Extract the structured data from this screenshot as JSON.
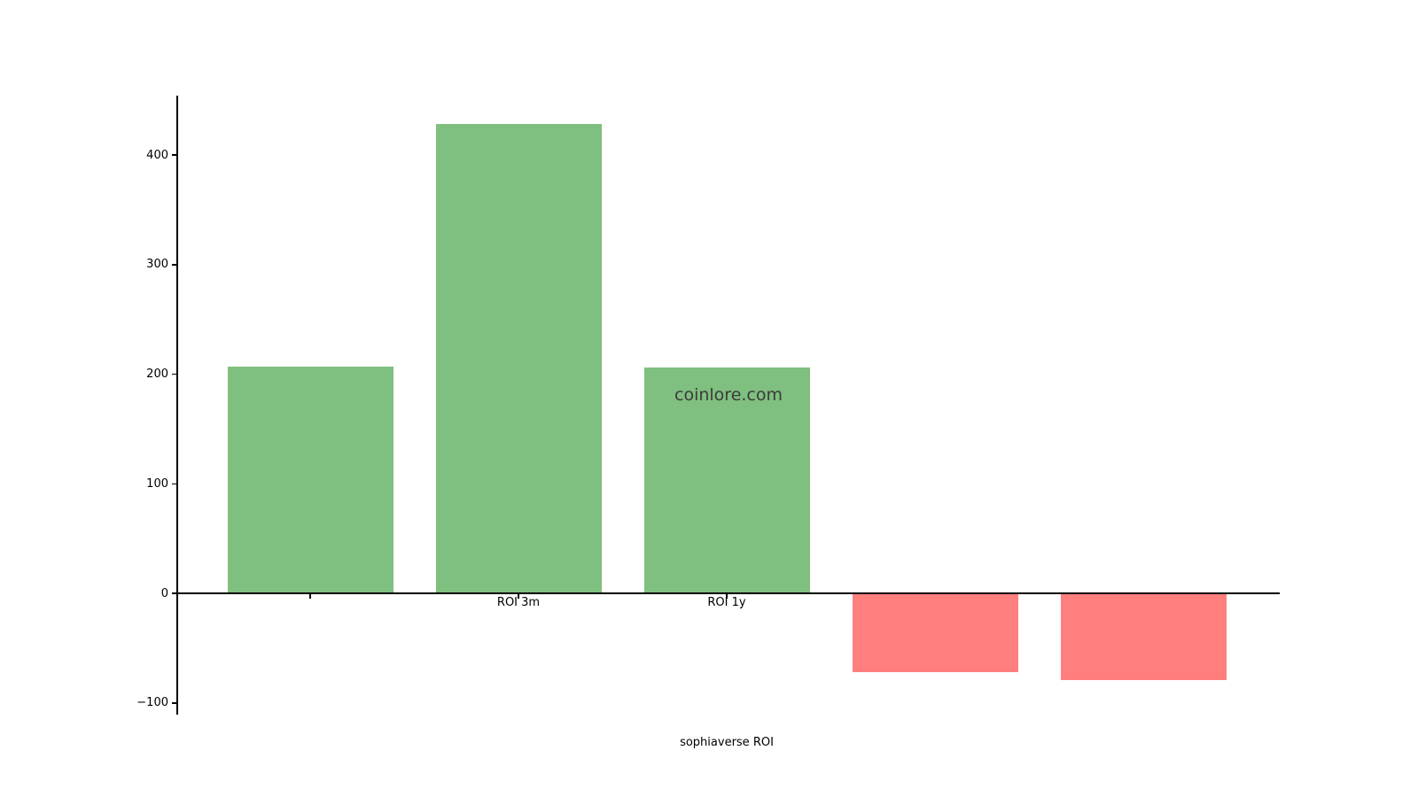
{
  "chart_data": {
    "type": "bar",
    "title": "",
    "watermark": "coinlore.com",
    "xlabel": "sophiaverse ROI",
    "ylabel": "",
    "categories": [
      "",
      "ROI 3m",
      "ROI 1y",
      "",
      ""
    ],
    "values": [
      207,
      428,
      206,
      -72,
      -79
    ],
    "positive_color": "#7fbf7f",
    "negative_color": "#ff7f7f",
    "axis_color": "#000000",
    "watermark_color": "#3b3b3b",
    "y_ticks": [
      {
        "v": -100,
        "label": "−100"
      },
      {
        "v": 0,
        "label": "0"
      },
      {
        "v": 100,
        "label": "100"
      },
      {
        "v": 200,
        "label": "200"
      },
      {
        "v": 300,
        "label": "300"
      },
      {
        "v": 400,
        "label": "400"
      }
    ],
    "ylim": [
      -110,
      455
    ],
    "grid": false,
    "legend": null
  }
}
